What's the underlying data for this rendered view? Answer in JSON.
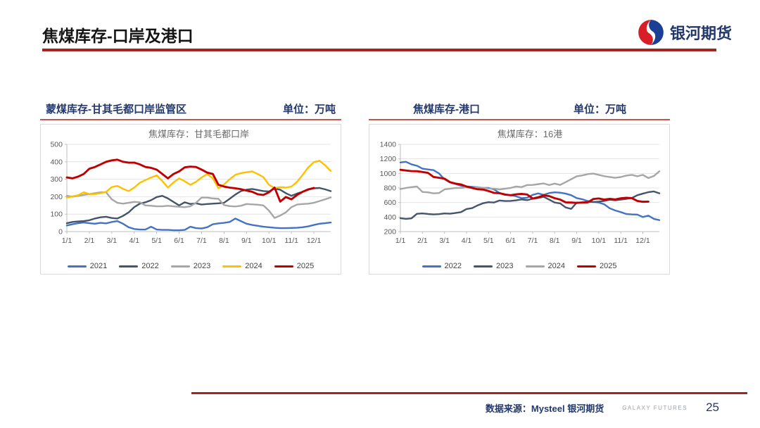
{
  "header": {
    "title": "焦煤库存-口岸及港口",
    "logo_text": "银河期货"
  },
  "panels": [
    {
      "title": "蒙煤库存-甘其毛都口岸监管区",
      "unit": "单位：万吨"
    },
    {
      "title": "焦煤库存-港口",
      "unit": "单位：万吨"
    }
  ],
  "footer": {
    "source": "数据来源：Mysteel 银河期货",
    "brand": "GALAXY FUTURES",
    "page": "25"
  },
  "colors": {
    "accent_red": "#A42422",
    "panel_rule": "#C45552",
    "navy": "#24396B",
    "axis_gray": "#595959"
  },
  "chart_data": [
    {
      "type": "line",
      "title": "焦煤库存：甘其毛都口岸",
      "xlabel": "",
      "ylabel": "",
      "ylim": [
        0,
        500
      ],
      "ytick_step": 100,
      "yticks": [
        0,
        100,
        200,
        300,
        400,
        500
      ],
      "x_ticks": [
        "1/1",
        "2/1",
        "3/1",
        "4/1",
        "5/1",
        "6/1",
        "7/1",
        "8/1",
        "9/1",
        "10/1",
        "11/1",
        "12/1"
      ],
      "points_per_month": 4,
      "grid": "horizontal",
      "legend_position": "bottom",
      "series": [
        {
          "name": "2021",
          "color": "#4472C4",
          "values": [
            35,
            42,
            48,
            52,
            48,
            45,
            50,
            47,
            55,
            60,
            45,
            25,
            15,
            12,
            12,
            28,
            12,
            10,
            10,
            8,
            8,
            10,
            28,
            20,
            18,
            25,
            42,
            47,
            50,
            55,
            75,
            60,
            45,
            38,
            33,
            28,
            25,
            22,
            20,
            20,
            21,
            22,
            25,
            30,
            38,
            45,
            48,
            52
          ]
        },
        {
          "name": "2022",
          "color": "#44546A",
          "values": [
            48,
            55,
            58,
            60,
            65,
            75,
            82,
            85,
            78,
            75,
            90,
            110,
            140,
            160,
            168,
            180,
            198,
            205,
            190,
            170,
            150,
            168,
            158,
            162,
            155,
            158,
            160,
            162,
            165,
            188,
            212,
            232,
            240,
            244,
            238,
            232,
            230,
            246,
            240,
            220,
            205,
            218,
            228,
            240,
            248,
            250,
            242,
            232
          ]
        },
        {
          "name": "2023",
          "color": "#A6A6A6",
          "values": [
            205,
            200,
            205,
            210,
            215,
            220,
            225,
            225,
            185,
            165,
            160,
            165,
            170,
            168,
            150,
            148,
            145,
            145,
            148,
            145,
            142,
            140,
            145,
            165,
            195,
            195,
            190,
            188,
            152,
            146,
            144,
            148,
            158,
            156,
            154,
            150,
            120,
            78,
            92,
            110,
            140,
            155,
            158,
            160,
            165,
            175,
            185,
            196
          ]
        },
        {
          "name": "2024",
          "color": "#FFC000",
          "values": [
            195,
            202,
            208,
            225,
            215,
            215,
            220,
            228,
            255,
            262,
            245,
            232,
            252,
            280,
            295,
            310,
            322,
            290,
            252,
            282,
            305,
            288,
            268,
            285,
            310,
            330,
            305,
            248,
            270,
            300,
            325,
            335,
            340,
            345,
            330,
            312,
            268,
            250,
            255,
            252,
            258,
            285,
            325,
            368,
            398,
            406,
            380,
            347
          ]
        },
        {
          "name": "2025",
          "color": "#C00000",
          "emphasis": true,
          "values": [
            310,
            305,
            315,
            330,
            360,
            370,
            385,
            400,
            408,
            412,
            400,
            395,
            395,
            385,
            370,
            365,
            355,
            330,
            305,
            330,
            345,
            368,
            372,
            370,
            355,
            338,
            330,
            268,
            258,
            252,
            248,
            243,
            235,
            228,
            214,
            210,
            225,
            252,
            172,
            198,
            185,
            210,
            228,
            242,
            250
          ]
        }
      ]
    },
    {
      "type": "line",
      "title": "焦煤库存：16港",
      "xlabel": "",
      "ylabel": "",
      "ylim": [
        200,
        1400
      ],
      "ytick_step": 200,
      "yticks": [
        200,
        400,
        600,
        800,
        1000,
        1200,
        1400
      ],
      "x_ticks": [
        "1/1",
        "2/1",
        "3/1",
        "4/1",
        "5/1",
        "6/1",
        "7/1",
        "8/1",
        "9/1",
        "10/1",
        "11/1",
        "12/1"
      ],
      "points_per_month": 4,
      "grid": "horizontal",
      "legend_position": "bottom",
      "series": [
        {
          "name": "2022",
          "color": "#4472C4",
          "values": [
            1150,
            1160,
            1125,
            1105,
            1065,
            1055,
            1045,
            1000,
            920,
            875,
            855,
            830,
            820,
            815,
            810,
            800,
            800,
            780,
            730,
            705,
            700,
            685,
            660,
            665,
            705,
            725,
            705,
            730,
            740,
            735,
            722,
            700,
            660,
            645,
            620,
            608,
            600,
            575,
            520,
            490,
            468,
            442,
            436,
            434,
            400,
            420,
            375,
            358
          ]
        },
        {
          "name": "2023",
          "color": "#44546A",
          "values": [
            385,
            375,
            382,
            445,
            450,
            442,
            436,
            440,
            450,
            446,
            456,
            468,
            510,
            522,
            560,
            590,
            605,
            600,
            628,
            620,
            622,
            630,
            642,
            632,
            652,
            662,
            678,
            640,
            600,
            588,
            532,
            512,
            598,
            602,
            610,
            606,
            612,
            622,
            638,
            630,
            640,
            650,
            662,
            700,
            722,
            742,
            752,
            726
          ]
        },
        {
          "name": "2024",
          "color": "#A6A6A6",
          "values": [
            785,
            800,
            812,
            820,
            745,
            740,
            726,
            730,
            780,
            790,
            800,
            800,
            810,
            800,
            812,
            800,
            792,
            790,
            780,
            790,
            800,
            820,
            812,
            840,
            842,
            852,
            862,
            840,
            860,
            842,
            880,
            920,
            960,
            972,
            990,
            998,
            980,
            962,
            950,
            940,
            950,
            970,
            980,
            960,
            980,
            936,
            964,
            1030
          ]
        },
        {
          "name": "2025",
          "color": "#C00000",
          "emphasis": true,
          "values": [
            1050,
            1040,
            1032,
            1030,
            1020,
            1008,
            952,
            940,
            928,
            880,
            860,
            848,
            820,
            800,
            782,
            778,
            758,
            732,
            728,
            710,
            700,
            712,
            718,
            710,
            655,
            672,
            698,
            688,
            660,
            640,
            602,
            600,
            595,
            600,
            602,
            648,
            655,
            640,
            650,
            642,
            658,
            665,
            660,
            622,
            610,
            612
          ]
        }
      ]
    }
  ]
}
